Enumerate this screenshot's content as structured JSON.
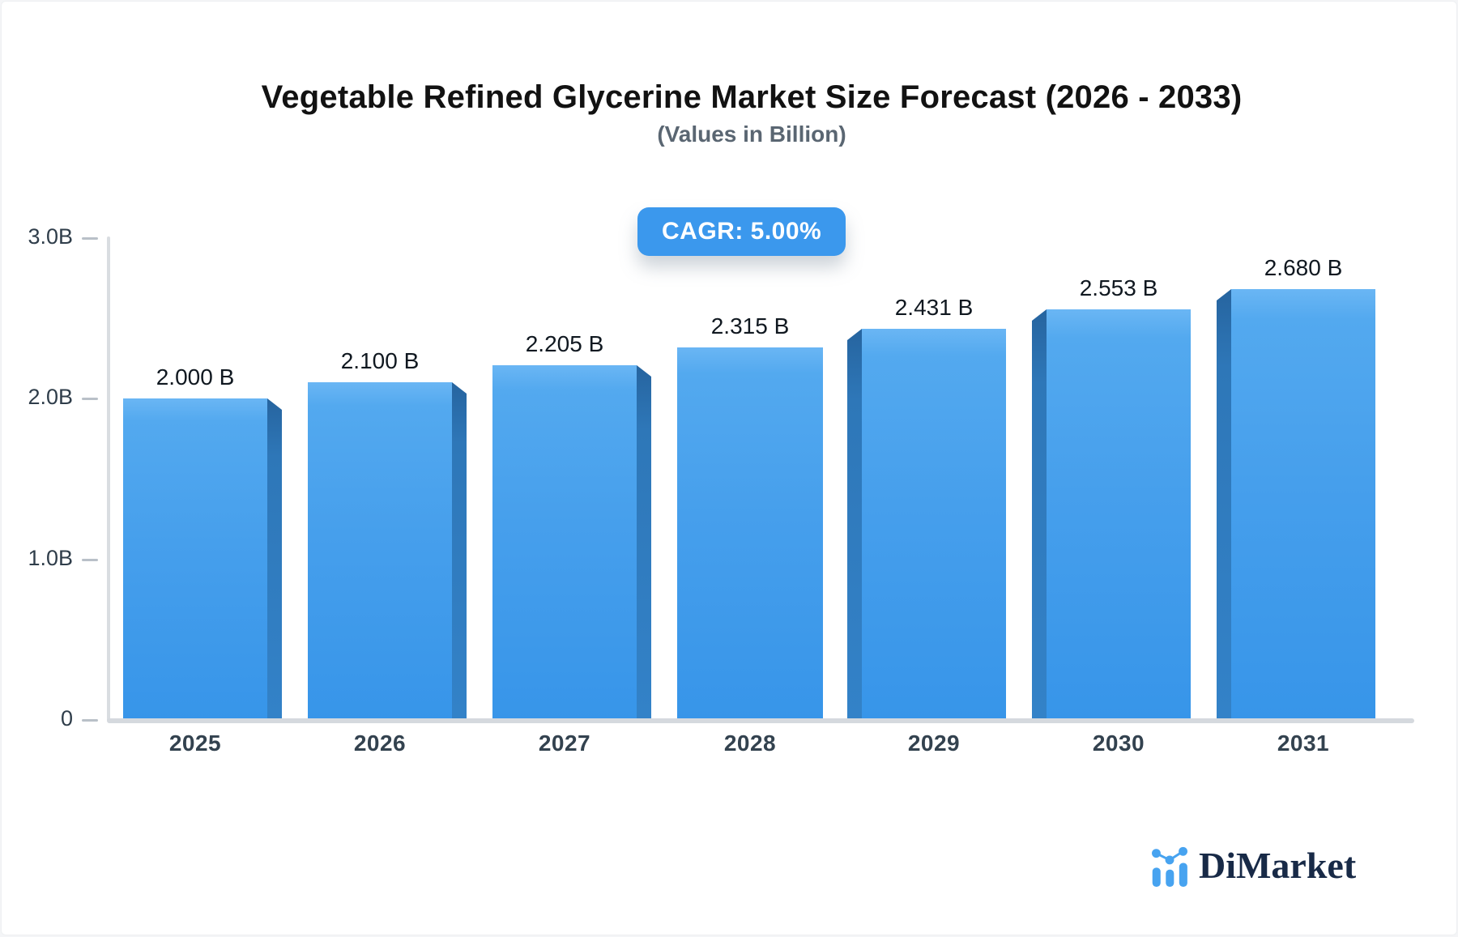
{
  "chart_data": {
    "type": "bar",
    "title": "Vegetable Refined Glycerine Market Size Forecast (2026 - 2033)",
    "subtitle": "(Values in Billion)",
    "badge": "CAGR: 5.00%",
    "categories": [
      "2025",
      "2026",
      "2027",
      "2028",
      "2029",
      "2030",
      "2031"
    ],
    "values": [
      2.0,
      2.1,
      2.205,
      2.315,
      2.431,
      2.553,
      2.68
    ],
    "value_labels": [
      "2.000 B",
      "2.100 B",
      "2.205 B",
      "2.315 B",
      "2.431 B",
      "2.553 B",
      "2.680 B"
    ],
    "unit": "Billion",
    "ylim": [
      0,
      3
    ],
    "yticks": [
      {
        "label": "3.0B",
        "value": 3.0
      },
      {
        "label": "2.0B",
        "value": 2.0
      },
      {
        "label": "1.0B",
        "value": 1.0
      },
      {
        "label": "0",
        "value": 0.0
      }
    ],
    "grid": false,
    "legend": false,
    "bar_color": "#459FEC",
    "bar_side_color": "#2E77B8",
    "badge_color": "#3B98ED"
  },
  "footer": {
    "brand": "DiMarket",
    "logo_color": "#47A3F0",
    "text_color": "#182A47"
  }
}
